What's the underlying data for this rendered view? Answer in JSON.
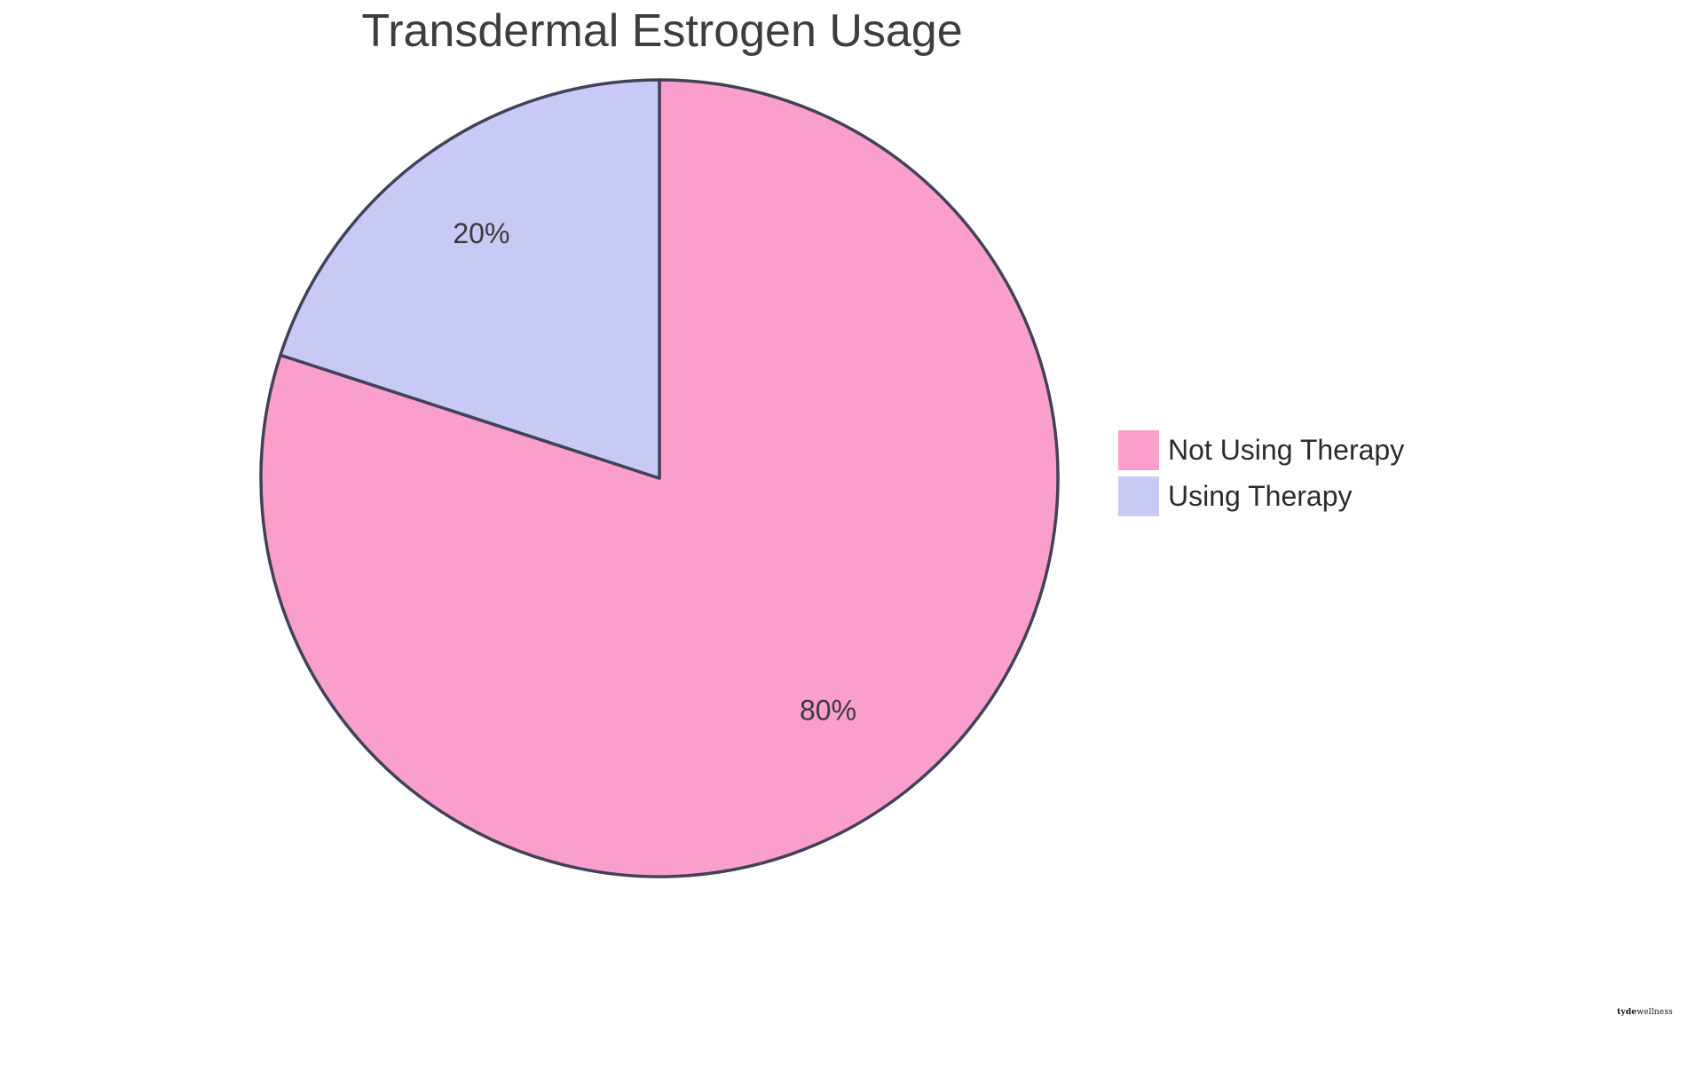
{
  "chart_data": {
    "type": "pie",
    "title": "Transdermal Estrogen Usage",
    "labels": [
      "Not Using Therapy",
      "Using Therapy"
    ],
    "values": [
      80,
      20
    ],
    "slice_labels": [
      "80%",
      "20%"
    ],
    "colors": [
      "#FA9FCB",
      "#C9C9F6"
    ],
    "slice_border_color": "#414159",
    "start_angle_deg": -90,
    "direction": "clockwise",
    "legend_position": "middle-right",
    "label_position": "inside"
  },
  "watermark": {
    "brand_bold": "tyde",
    "brand_rest": "wellness"
  }
}
